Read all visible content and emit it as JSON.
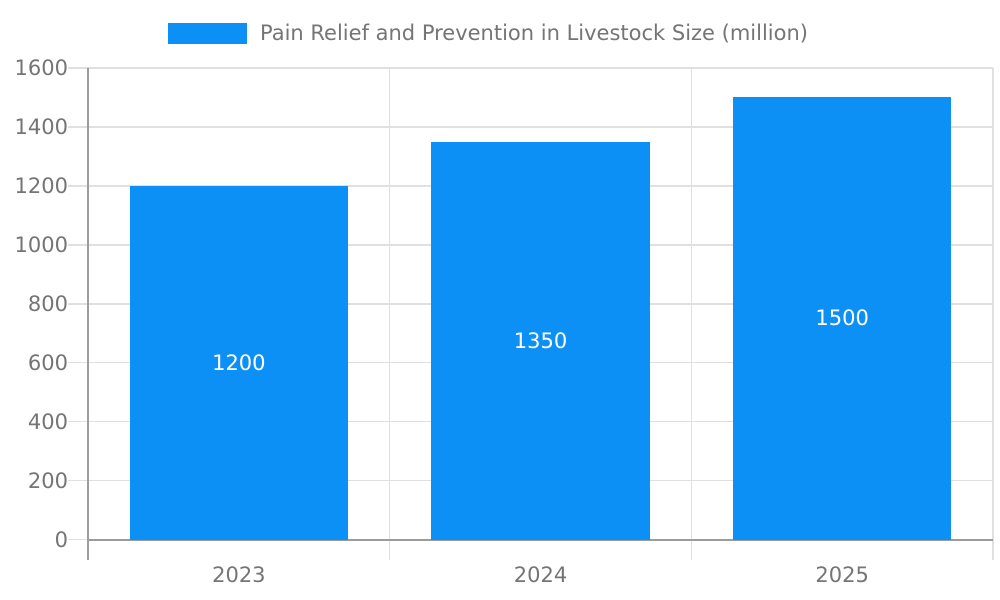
{
  "legend": {
    "label": "Pain Relief and Prevention in Livestock Size (million)"
  },
  "chart_data": {
    "type": "bar",
    "title": "Pain Relief and Prevention in Livestock Size (million)",
    "categories": [
      "2023",
      "2024",
      "2025"
    ],
    "values": [
      1200,
      1350,
      1500
    ],
    "bar_labels": [
      "1200",
      "1350",
      "1500"
    ],
    "xlabel": "",
    "ylabel": "",
    "ylim": [
      0,
      1600
    ],
    "ytick_step": 200,
    "yticks": [
      0,
      200,
      400,
      600,
      800,
      1000,
      1200,
      1400,
      1600
    ],
    "grid": true,
    "legend_position": "top",
    "bar_label_position": "center",
    "colors": {
      "bar": "#0d90f6",
      "bar_label": "#ffffff",
      "axis_text": "#757575",
      "legend_text": "#757575",
      "gridline": "#e0e0e0",
      "axis_line": "#9c9c9c",
      "background": "#ffffff"
    }
  }
}
